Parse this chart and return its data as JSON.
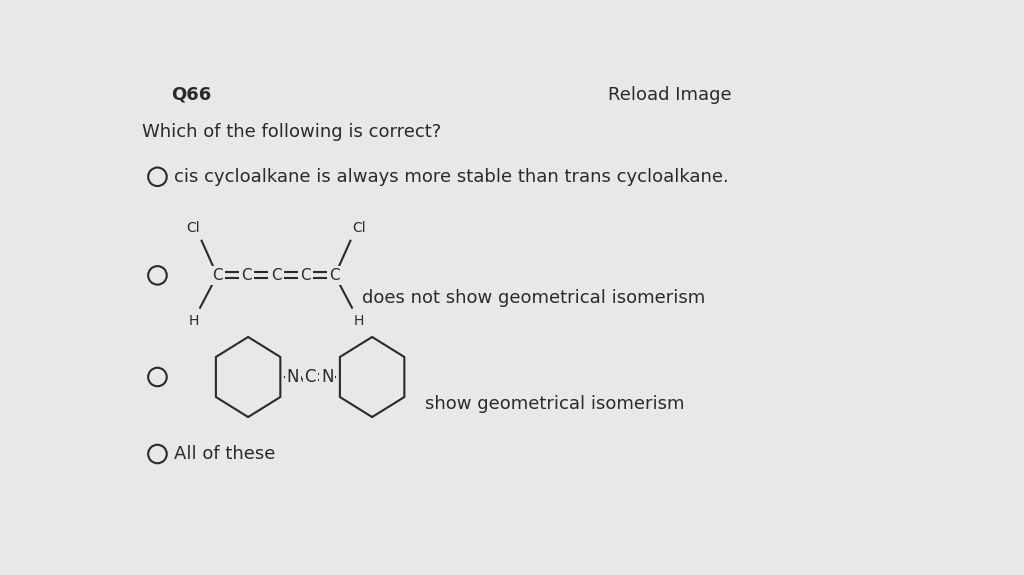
{
  "background_color": "#e8e8e8",
  "title": "Q66",
  "reload_text": "Reload Image",
  "question": "Which of the following is correct?",
  "option1_text": "cis cycloalkane is always more stable than trans cycloalkane.",
  "option2_suffix": "does not show geometrical isomerism",
  "option3_suffix": "show geometrical isomerism",
  "option4_text": "All of these",
  "title_fontsize": 13,
  "question_fontsize": 13,
  "body_fontsize": 13,
  "small_fontsize": 10,
  "text_color": "#2a2a2a",
  "circle_color": "#2a2a2a",
  "struct_color": "#2a2a2a"
}
